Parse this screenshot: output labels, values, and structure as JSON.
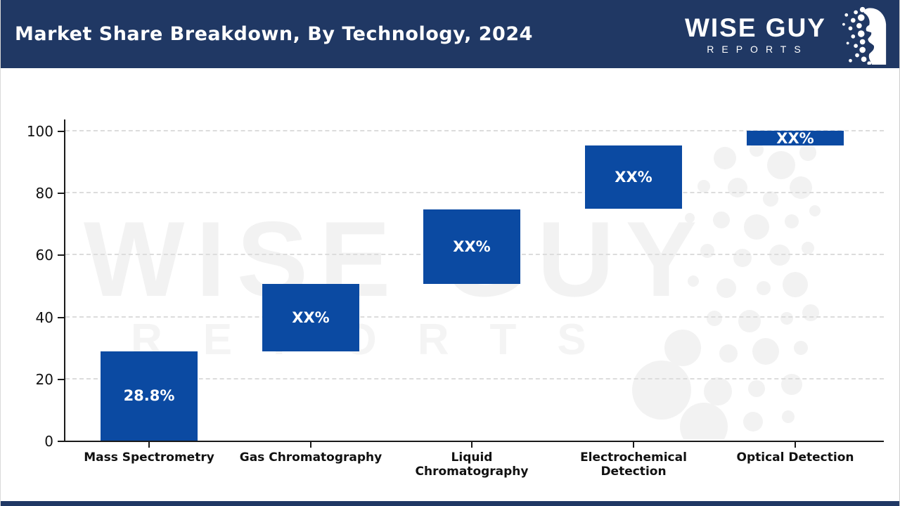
{
  "header": {
    "title": "Market Share Breakdown, By Technology, 2024",
    "logo": {
      "line1": "WISE GUY",
      "line2": "REPORTS"
    }
  },
  "watermark": {
    "line1": "WISE GUY",
    "line2": "REPORTS"
  },
  "colors": {
    "header_bg": "#203864",
    "bar": "#0b4aa2",
    "bar_label": "#ffffff",
    "gridline": "#dcdcdc",
    "axis": "#1a1a1a",
    "watermark": "#f2f2f2"
  },
  "chart_data": {
    "type": "bar",
    "subtype": "waterfall",
    "title": "Market Share Breakdown, By Technology, 2024",
    "xlabel": "",
    "ylabel": "",
    "ylim": [
      0,
      105
    ],
    "yticks": [
      0,
      20,
      40,
      60,
      80,
      100
    ],
    "grid": "horizontal dashed",
    "legend": "none",
    "categories": [
      "Mass Spectrometry",
      "Gas Chromatography",
      "Liquid Chromatography",
      "Electrochemical Detection",
      "Optical Detection"
    ],
    "bars": [
      {
        "category_lines": [
          "Mass Spectrometry"
        ],
        "start": 0,
        "end": 28.8,
        "label": "28.8%"
      },
      {
        "category_lines": [
          "Gas Chromatography"
        ],
        "start": 28.8,
        "end": 50.5,
        "label": "XX%"
      },
      {
        "category_lines": [
          "Liquid",
          "Chromatography"
        ],
        "start": 50.6,
        "end": 74.5,
        "label": "XX%"
      },
      {
        "category_lines": [
          "Electrochemical",
          "Detection"
        ],
        "start": 74.8,
        "end": 95.3,
        "label": "XX%"
      },
      {
        "category_lines": [
          "Optical Detection"
        ],
        "start": 95.2,
        "end": 100,
        "label": "XX%"
      }
    ]
  }
}
